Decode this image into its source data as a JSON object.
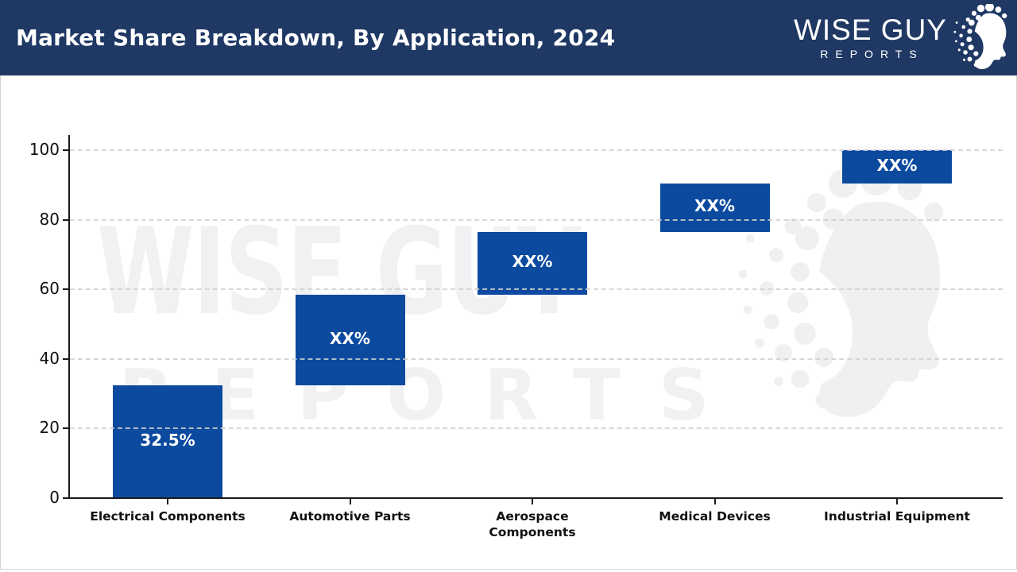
{
  "header": {
    "title": "Market Share Breakdown, By Application, 2024",
    "bg_color": "#1f3864",
    "logo": {
      "line1": "WISE GUY",
      "line2": "REPORTS"
    }
  },
  "watermark": {
    "line1": "WISE GUY",
    "line2": "REPORTS"
  },
  "chart_data": {
    "type": "bar",
    "subtype": "waterfall-stacked-segments",
    "title": "Market Share Breakdown, By Application, 2024",
    "categories": [
      "Electrical Components",
      "Automotive Parts",
      "Aerospace Components",
      "Medical Devices",
      "Industrial Equipment"
    ],
    "segments": [
      {
        "category": "Electrical Components",
        "start": 0,
        "end": 32.5,
        "label": "32.5%"
      },
      {
        "category": "Automotive Parts",
        "start": 32.5,
        "end": 58.5,
        "label": "XX%"
      },
      {
        "category": "Aerospace Components",
        "start": 58.5,
        "end": 76.5,
        "label": "XX%"
      },
      {
        "category": "Medical Devices",
        "start": 76.5,
        "end": 90.5,
        "label": "XX%"
      },
      {
        "category": "Industrial Equipment",
        "start": 90.5,
        "end": 100,
        "label": "XX%"
      }
    ],
    "y_ticks": [
      0,
      20,
      40,
      60,
      80,
      100
    ],
    "ylim": [
      0,
      104
    ],
    "xlabel": "",
    "ylabel": "",
    "bar_color": "#0b4a9e",
    "grid": "horizontal-dashed",
    "legend": "none"
  }
}
